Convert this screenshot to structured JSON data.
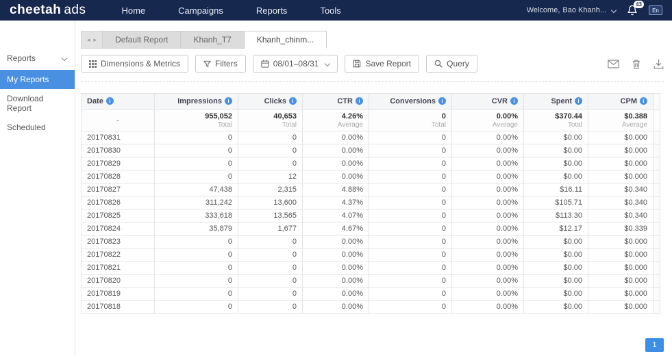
{
  "navbar": {
    "brand_bold": "cheetah",
    "brand_light": "ads",
    "items": [
      {
        "label": "Home"
      },
      {
        "label": "Campaigns"
      },
      {
        "label": "Reports"
      },
      {
        "label": "Tools"
      }
    ],
    "welcome_label": "Welcome,",
    "username": "Bao Khanh...",
    "notification_count": "43",
    "language": "En"
  },
  "sidebar": {
    "section_label": "Reports",
    "items": [
      {
        "label": "My Reports",
        "active": true
      },
      {
        "label": "Download Report",
        "active": false
      },
      {
        "label": "Scheduled",
        "active": false
      }
    ]
  },
  "tabs": [
    {
      "label": "Default Report",
      "active": false
    },
    {
      "label": "Khanh_T7",
      "active": false
    },
    {
      "label": "Khanh_chinm...",
      "active": true
    }
  ],
  "toolbar": {
    "dimensions_metrics_label": "Dimensions & Metrics",
    "filters_label": "Filters",
    "date_range": "08/01–08/31",
    "save_report_label": "Save Report",
    "query_label": "Query"
  },
  "table": {
    "columns": [
      "Date",
      "Impressions",
      "Clicks",
      "CTR",
      "Conversions",
      "CVR",
      "Spent",
      "CPM"
    ],
    "summary": {
      "date": "-",
      "values": [
        {
          "value": "955,052",
          "sub": "Total"
        },
        {
          "value": "40,653",
          "sub": "Total"
        },
        {
          "value": "4.26%",
          "sub": "Average"
        },
        {
          "value": "0",
          "sub": "Total"
        },
        {
          "value": "0.00%",
          "sub": "Average"
        },
        {
          "value": "$370.44",
          "sub": "Total"
        },
        {
          "value": "$0.388",
          "sub": "Average"
        }
      ]
    },
    "rows": [
      [
        "20170831",
        "0",
        "0",
        "0.00%",
        "0",
        "0.00%",
        "$0.00",
        "$0.000"
      ],
      [
        "20170830",
        "0",
        "0",
        "0.00%",
        "0",
        "0.00%",
        "$0.00",
        "$0.000"
      ],
      [
        "20170829",
        "0",
        "0",
        "0.00%",
        "0",
        "0.00%",
        "$0.00",
        "$0.000"
      ],
      [
        "20170828",
        "0",
        "12",
        "0.00%",
        "0",
        "0.00%",
        "$0.00",
        "$0.000"
      ],
      [
        "20170827",
        "47,438",
        "2,315",
        "4.88%",
        "0",
        "0.00%",
        "$16.11",
        "$0.340"
      ],
      [
        "20170826",
        "311,242",
        "13,600",
        "4.37%",
        "0",
        "0.00%",
        "$105.71",
        "$0.340"
      ],
      [
        "20170825",
        "333,618",
        "13,565",
        "4.07%",
        "0",
        "0.00%",
        "$113.30",
        "$0.340"
      ],
      [
        "20170824",
        "35,879",
        "1,677",
        "4.67%",
        "0",
        "0.00%",
        "$12.17",
        "$0.339"
      ],
      [
        "20170823",
        "0",
        "0",
        "0.00%",
        "0",
        "0.00%",
        "$0.00",
        "$0.000"
      ],
      [
        "20170822",
        "0",
        "0",
        "0.00%",
        "0",
        "0.00%",
        "$0.00",
        "$0.000"
      ],
      [
        "20170821",
        "0",
        "0",
        "0.00%",
        "0",
        "0.00%",
        "$0.00",
        "$0.000"
      ],
      [
        "20170820",
        "0",
        "0",
        "0.00%",
        "0",
        "0.00%",
        "$0.00",
        "$0.000"
      ],
      [
        "20170819",
        "0",
        "0",
        "0.00%",
        "0",
        "0.00%",
        "$0.00",
        "$0.000"
      ],
      [
        "20170818",
        "0",
        "0",
        "0.00%",
        "0",
        "0.00%",
        "$0.00",
        "$0.000"
      ]
    ]
  },
  "pagination": {
    "current_page": "1"
  },
  "colors": {
    "navbar": "#16284e",
    "accent_blue": "#4a90e2",
    "pager_blue": "#3d8fe6"
  }
}
